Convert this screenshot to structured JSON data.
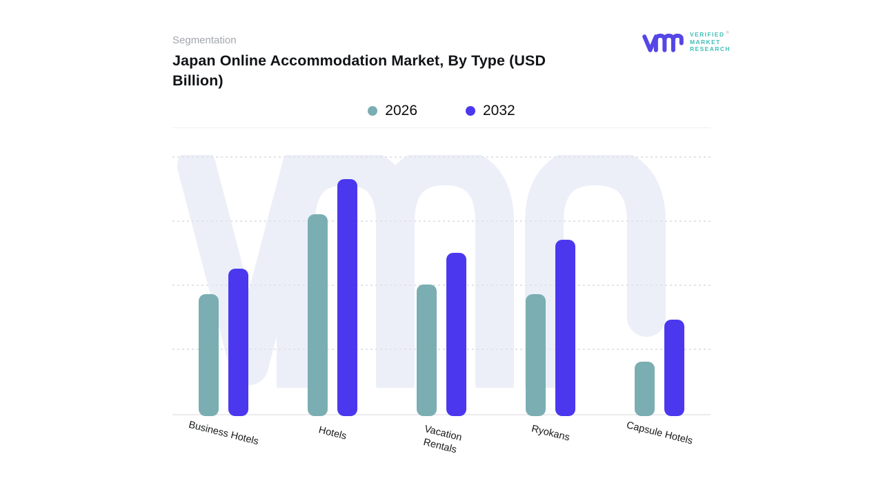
{
  "header": {
    "eyebrow": "Segmentation",
    "title": "Japan Online Accommodation Market, By Type (USD Billion)"
  },
  "brand": {
    "wordmark_lines": [
      "VERIFIED",
      "MARKET",
      "RESEARCH"
    ],
    "registered_mark": "®",
    "glyph_color": "#5546e6",
    "wordmark_color": "#3fbdb9"
  },
  "watermark": {
    "glyph": "vmr",
    "color": "#eceff8"
  },
  "chart_data": {
    "type": "bar",
    "title": "Japan Online Accommodation Market, By Type (USD Billion)",
    "unit": "USD Billion",
    "categories": [
      "Business Hotels",
      "Hotels",
      "Vacation Rentals",
      "Ryokans",
      "Capsule Hotels"
    ],
    "category_label_lines": [
      [
        "Business Hotels"
      ],
      [
        "Hotels"
      ],
      [
        "Vacation",
        "Rentals"
      ],
      [
        "Ryokans"
      ],
      [
        "Capsule Hotels"
      ]
    ],
    "series": [
      {
        "name": "2026",
        "color": "#7aaeb2",
        "values": [
          1.9,
          3.15,
          2.05,
          1.9,
          0.85
        ]
      },
      {
        "name": "2032",
        "color": "#4b38ee",
        "values": [
          2.3,
          3.7,
          2.55,
          2.75,
          1.5
        ]
      }
    ],
    "ylim": [
      0,
      4.5
    ],
    "gridline_values": [
      1,
      2,
      3,
      4
    ],
    "grid_style": "horizontal dashed",
    "y_axis_tick_labels_visible": false,
    "x_label_rotation_deg": 14,
    "legend_position": "top center"
  }
}
